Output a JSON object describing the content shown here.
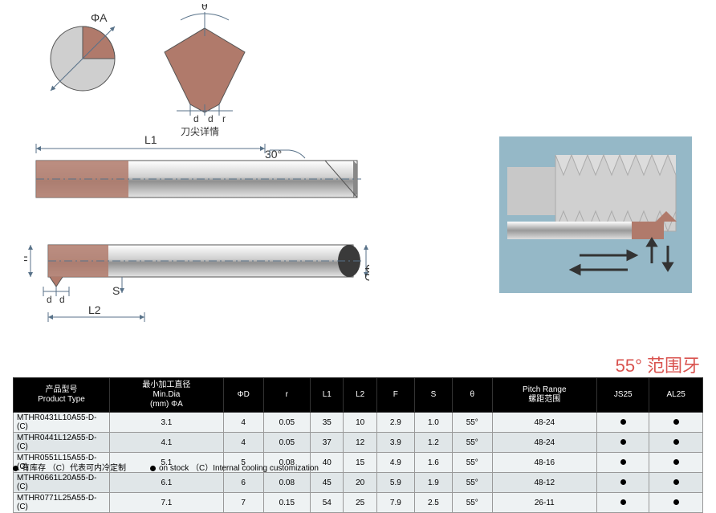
{
  "title_right": "55°  范围牙",
  "labels": {
    "phiA": "ΦA",
    "theta": "θ",
    "d1": "d",
    "d2": "d",
    "r": "r",
    "tip_detail": "刀尖详情",
    "L1": "L1",
    "angle30": "30°",
    "F": "F",
    "S": "S",
    "L2": "L2",
    "phiD": "ΦD"
  },
  "columns": [
    {
      "l1": "产品型号",
      "l2": "Product Type"
    },
    {
      "l1": "最小加工直径",
      "l2": "Min.Dia",
      "l3": "(mm) ΦA"
    },
    {
      "l1": "ΦD"
    },
    {
      "l1": "r"
    },
    {
      "l1": "L1"
    },
    {
      "l1": "L2"
    },
    {
      "l1": "F"
    },
    {
      "l1": "S"
    },
    {
      "l1": "θ"
    },
    {
      "l1": "Pitch Range",
      "l2": "螺距范围"
    },
    {
      "l1": "JS25"
    },
    {
      "l1": "AL25"
    }
  ],
  "rows": [
    [
      "MTHR0431L10A55-D-(C)",
      "3.1",
      "4",
      "0.05",
      "35",
      "10",
      "2.9",
      "1.0",
      "55°",
      "48-24",
      "●",
      "●"
    ],
    [
      "MTHR0441L12A55-D-(C)",
      "4.1",
      "4",
      "0.05",
      "37",
      "12",
      "3.9",
      "1.2",
      "55°",
      "48-24",
      "●",
      "●"
    ],
    [
      "MTHR0551L15A55-D-(C)",
      "5.1",
      "5",
      "0.08",
      "40",
      "15",
      "4.9",
      "1.6",
      "55°",
      "48-16",
      "●",
      "●"
    ],
    [
      "MTHR0661L20A55-D-(C)",
      "6.1",
      "6",
      "0.08",
      "45",
      "20",
      "5.9",
      "1.9",
      "55°",
      "48-12",
      "●",
      "●"
    ],
    [
      "MTHR0771L25A55-D-(C)",
      "7.1",
      "7",
      "0.15",
      "54",
      "25",
      "7.9",
      "2.5",
      "55°",
      "26-11",
      "●",
      "●"
    ]
  ],
  "footer": {
    "stock": "有库存   （C）代表可内冷定制",
    "onstock": "on stock   （C）Internal cooling customization"
  },
  "colors": {
    "header_bg": "#000000",
    "header_fg": "#ffffff",
    "row_bg": "#eef2f3",
    "row_alt_bg": "#e0e6e8",
    "border": "#999999",
    "title": "#d9534f",
    "metal_light": "#e5e5e5",
    "metal_dark": "#8f8f8f",
    "tip": "#b07a6b",
    "dim": "#587289",
    "render_bg": "#95b8c7"
  }
}
